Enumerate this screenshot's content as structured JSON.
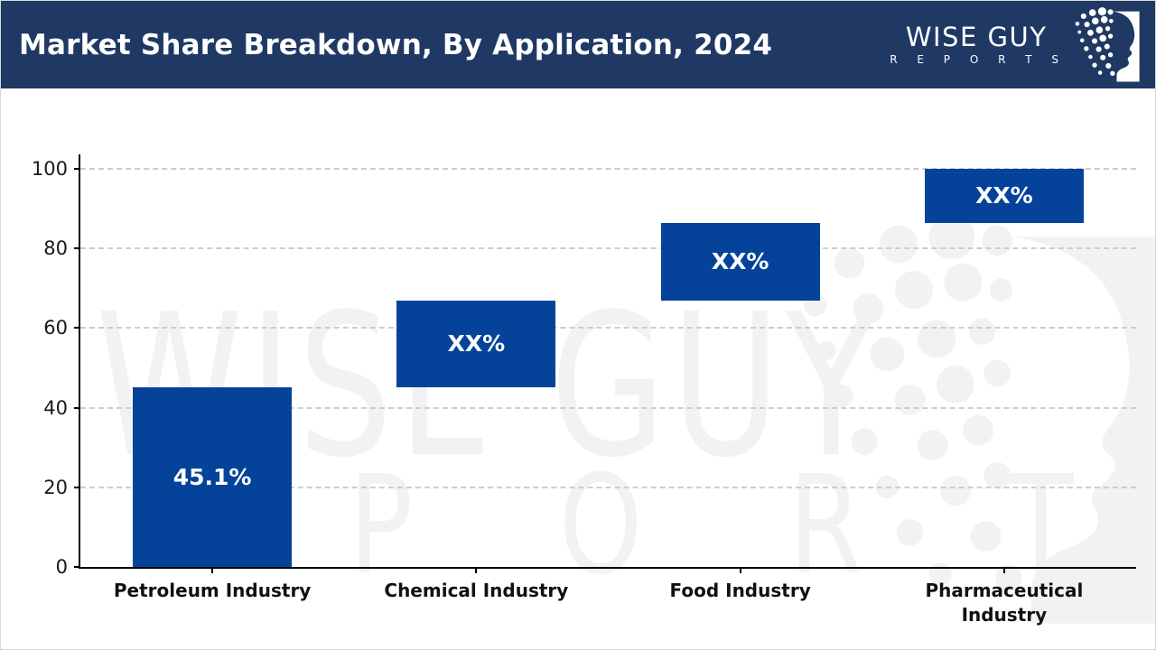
{
  "page": {
    "background": "#ffffff",
    "border_color": "#d9d9d9"
  },
  "header": {
    "background": "#1F3864",
    "title": "Market Share Breakdown, By Application, 2024",
    "logo": {
      "text_top": "WISE GUY",
      "text_bottom": "R E P O R T S",
      "face_icon": "dotted-profile-face-icon",
      "color": "#ffffff"
    }
  },
  "watermark": {
    "text_top": "WISE GUY",
    "text_bottom": "P O R T S",
    "color": "#f2f2f4"
  },
  "chart_data": {
    "type": "bar",
    "subtype": "waterfall-floating-bars",
    "title": "Market Share Breakdown, By Application, 2024",
    "xlabel": "",
    "ylabel": "",
    "ylim": [
      0,
      100
    ],
    "yticks": [
      0,
      20,
      40,
      60,
      80,
      100
    ],
    "grid": "horizontal-dashed",
    "legend": "none",
    "bar_color": "#05439B",
    "categories": [
      "Petroleum Industry",
      "Chemical Industry",
      "Food Industry",
      "Pharmaceutical\nIndustry"
    ],
    "segments": [
      {
        "category": "Petroleum Industry",
        "label": "45.1%",
        "start": 0,
        "end": 45.1
      },
      {
        "category": "Chemical Industry",
        "label": "XX%",
        "start": 45.1,
        "end": 67
      },
      {
        "category": "Food Industry",
        "label": "XX%",
        "start": 67,
        "end": 86.5
      },
      {
        "category": "Pharmaceutical Industry",
        "label": "XX%",
        "start": 86.5,
        "end": 100
      }
    ]
  }
}
